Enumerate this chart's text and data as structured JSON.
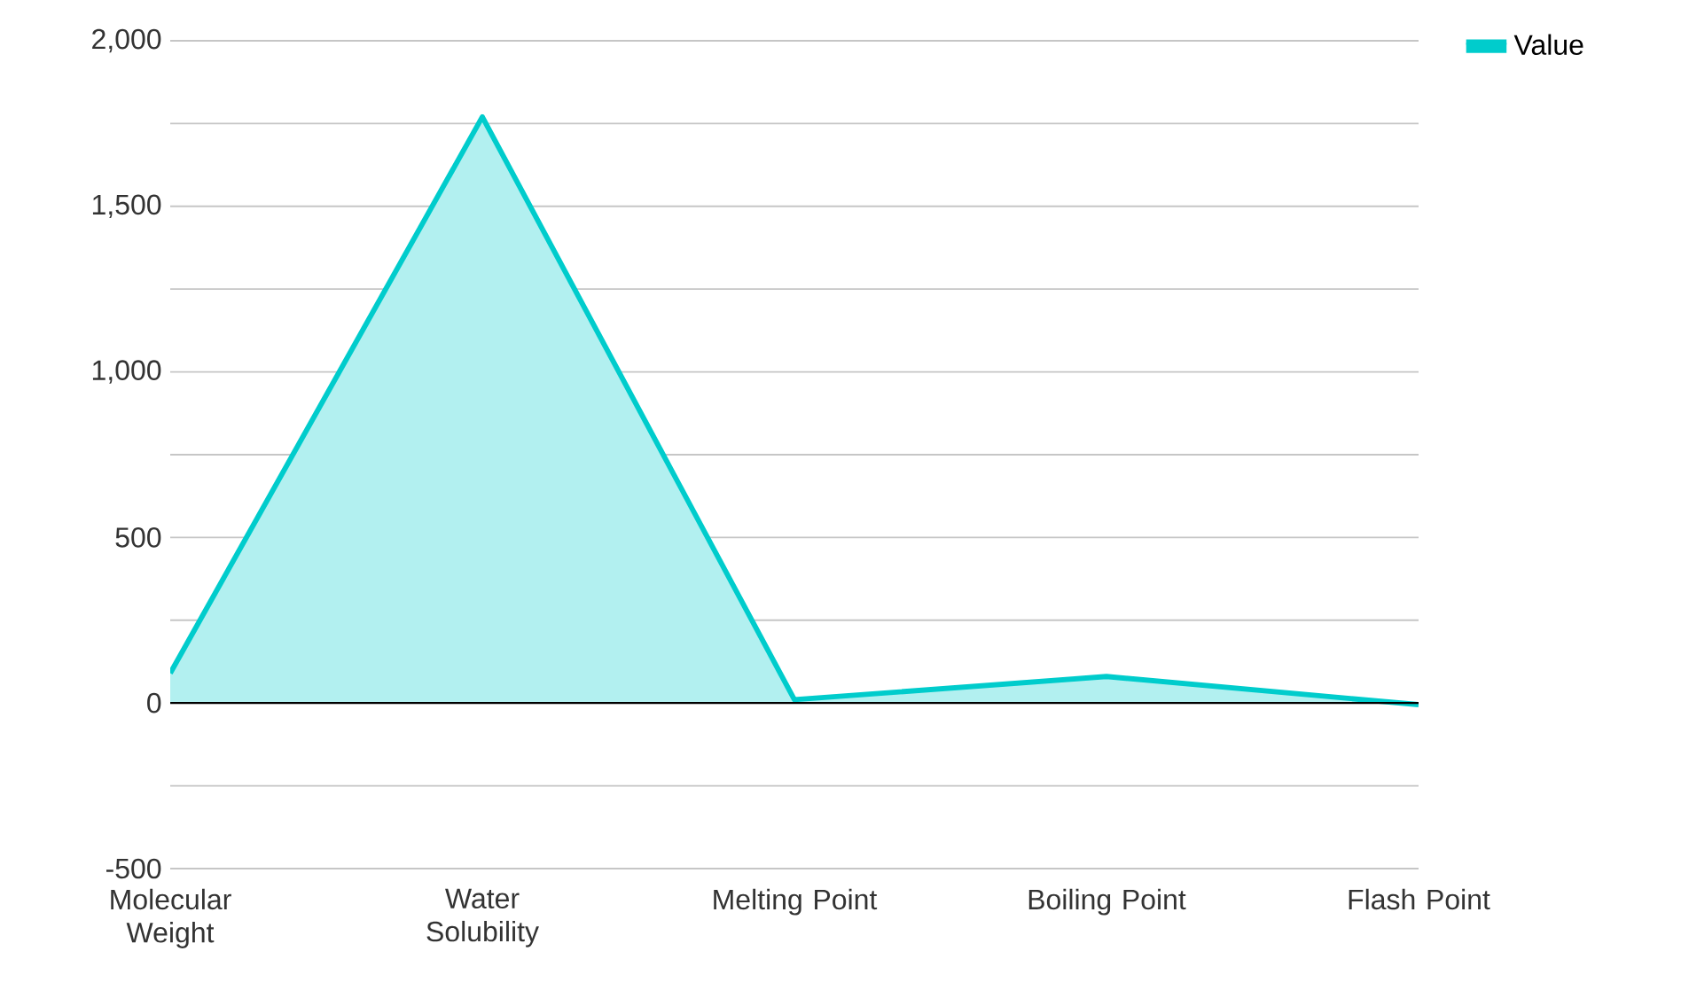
{
  "chart_data": {
    "type": "area",
    "categories": [
      "Molecular Weight",
      "Water Solubility",
      "Melting Point",
      "Boiling Point",
      "Flash Point"
    ],
    "series": [
      {
        "name": "Value",
        "color": "#00cccc",
        "values": [
          90,
          1770,
          10,
          80,
          -5
        ]
      }
    ],
    "ylim": [
      -500,
      2000
    ],
    "yticks": [
      -500,
      {
        "value": -250,
        "label": null
      },
      0,
      {
        "value": 250,
        "label": null
      },
      500,
      {
        "value": 750,
        "label": null
      },
      "1,000",
      {
        "value": 1250,
        "label": null
      },
      "1,500",
      {
        "value": 1750,
        "label": null
      },
      "2,000"
    ],
    "grid": "y",
    "legend": "top right"
  }
}
